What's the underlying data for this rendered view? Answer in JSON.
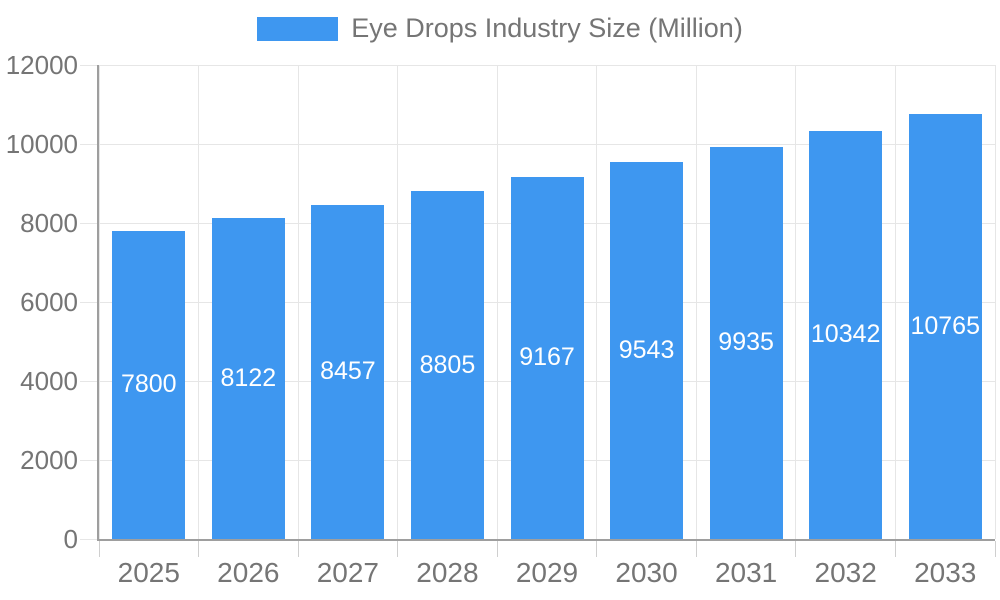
{
  "chart_data": {
    "type": "bar",
    "title": "Eye Drops Industry Size (Million)",
    "categories": [
      "2025",
      "2026",
      "2027",
      "2028",
      "2029",
      "2030",
      "2031",
      "2032",
      "2033"
    ],
    "values": [
      7800,
      8122,
      8457,
      8805,
      9167,
      9543,
      9935,
      10342,
      10765
    ],
    "series_name": "Eye Drops Industry Size (Million)",
    "xlabel": "",
    "ylabel": "",
    "ylim": [
      0,
      12000
    ],
    "yticks": [
      0,
      2000,
      4000,
      6000,
      8000,
      10000,
      12000
    ],
    "grid": true,
    "legend_position": "top",
    "value_label_position": "inside-center",
    "colors": {
      "bar": "#3E97F0",
      "axis_line": "#9e9e9e",
      "gridline": "#e6e6e6",
      "tick": "#cfcfcf",
      "label_text": "#757575",
      "value_label_text": "#ffffff",
      "background": "#ffffff"
    }
  }
}
